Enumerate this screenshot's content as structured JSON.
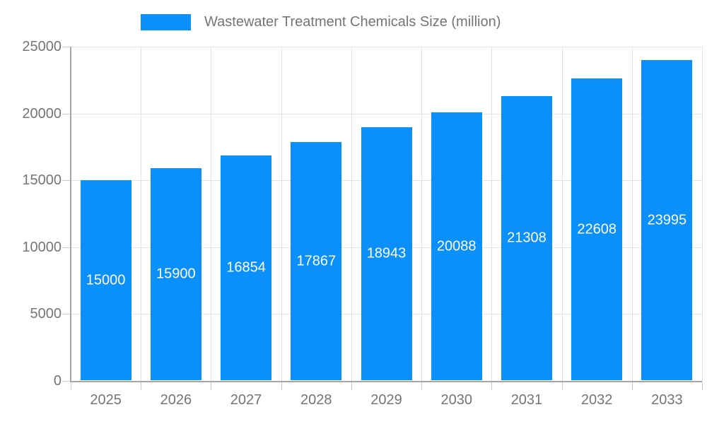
{
  "chart_data": {
    "type": "bar",
    "title": "Wastewater Treatment Chemicals Size (million)",
    "categories": [
      "2025",
      "2026",
      "2027",
      "2028",
      "2029",
      "2030",
      "2031",
      "2032",
      "2033"
    ],
    "values": [
      15000,
      15900,
      16854,
      17867,
      18943,
      20088,
      21308,
      22608,
      23995
    ],
    "value_labels": [
      "15000",
      "15900",
      "16854",
      "17867",
      "18943",
      "20088",
      "21308",
      "22608",
      "23995"
    ],
    "xlabel": "",
    "ylabel": "",
    "ylim": [
      0,
      25000
    ],
    "yticks": [
      0,
      5000,
      10000,
      15000,
      20000,
      25000
    ],
    "ytick_labels": [
      "0",
      "5000",
      "10000",
      "15000",
      "20000",
      "25000"
    ],
    "legend_position": "top",
    "grid": "horizontal and vertical category boundaries",
    "colors": {
      "bar": "#0a90f8",
      "value_text": "#ffffff",
      "axis_text": "#757575",
      "legend_text": "#757575",
      "grid_line": "#e3e3e3",
      "axis_line": "#a6a6a6",
      "tick_mark": "#c9c9c9",
      "background": "#ffffff"
    }
  }
}
